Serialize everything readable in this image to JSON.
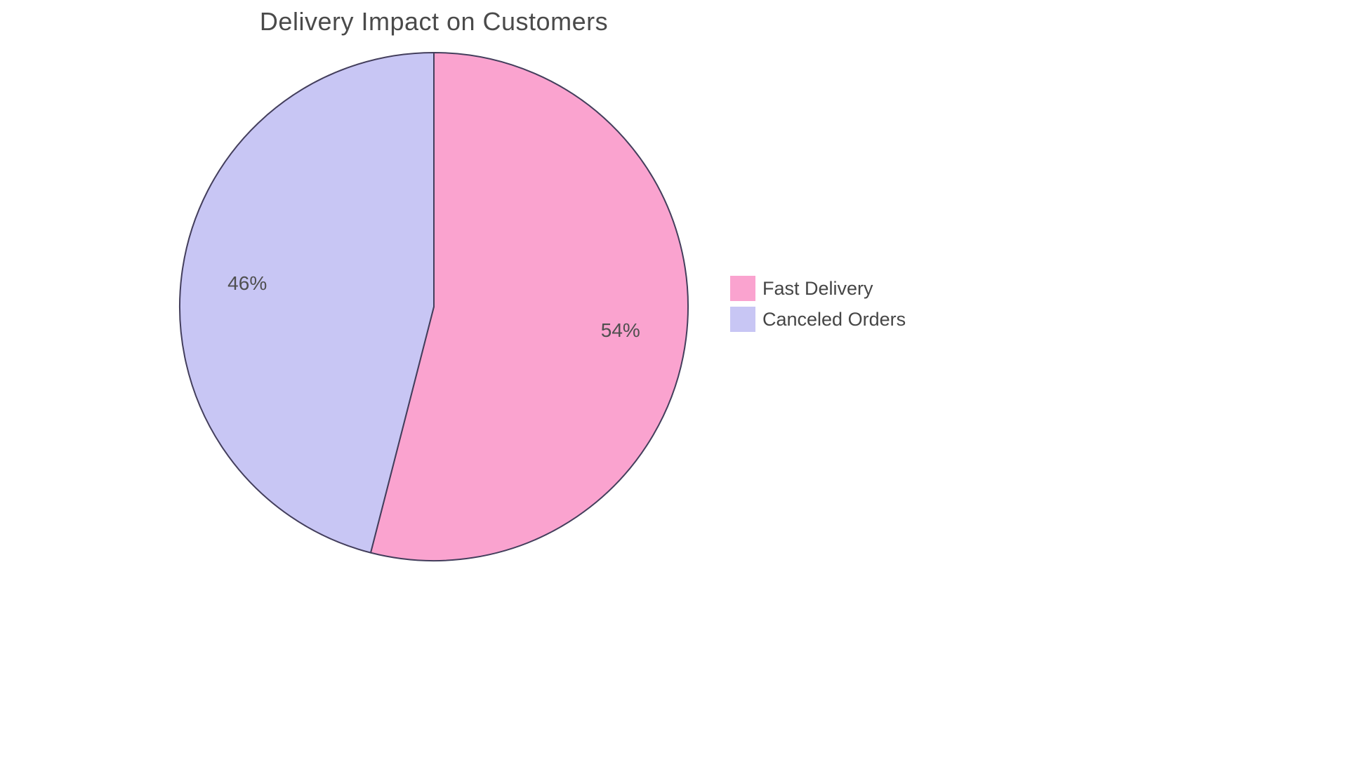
{
  "chart_data": {
    "type": "pie",
    "title": "Delivery Impact on Customers",
    "labels": [
      "Fast Delivery",
      "Canceled Orders"
    ],
    "values": [
      54,
      46
    ],
    "value_labels": [
      "54%",
      "46%"
    ],
    "colors": [
      "#FAA3CF",
      "#C8C6F4"
    ],
    "stroke_color": "#433E5C",
    "stroke_width": 2,
    "start_angle_deg": 0,
    "direction": "clockwise",
    "legend_position": "right",
    "background_color": "#FFFFFF"
  }
}
